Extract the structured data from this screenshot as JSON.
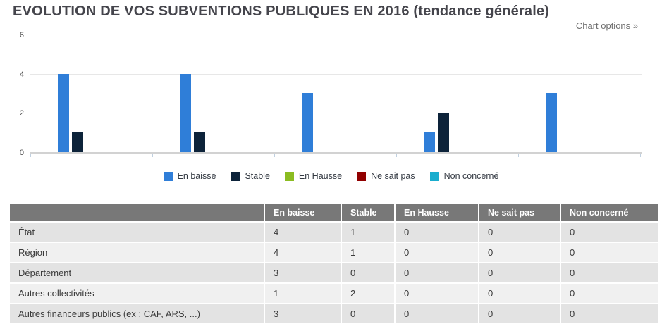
{
  "header": {
    "title": "EVOLUTION DE VOS SUBVENTIONS PUBLIQUES EN 2016 (tendance générale)",
    "chart_options_label": "Chart options »"
  },
  "chart_data": {
    "type": "bar",
    "categories": [
      "État",
      "Région",
      "Département",
      "Autres collectivités",
      "Autres financeurs publics (ex : CAF, ARS, ...)"
    ],
    "series": [
      {
        "name": "En baisse",
        "color": "#2f7ed8",
        "values": [
          4,
          4,
          3,
          1,
          3
        ]
      },
      {
        "name": "Stable",
        "color": "#0d233a",
        "values": [
          1,
          1,
          0,
          2,
          0
        ]
      },
      {
        "name": "En Hausse",
        "color": "#8bbc21",
        "values": [
          0,
          0,
          0,
          0,
          0
        ]
      },
      {
        "name": "Ne sait pas",
        "color": "#910000",
        "values": [
          0,
          0,
          0,
          0,
          0
        ]
      },
      {
        "name": "Non concerné",
        "color": "#1aadce",
        "values": [
          0,
          0,
          0,
          0,
          0
        ]
      }
    ],
    "title": "EVOLUTION DE VOS SUBVENTIONS PUBLIQUES EN 2016 (tendance générale)",
    "xlabel": "",
    "ylabel": "",
    "ylim": [
      0,
      6
    ],
    "yticks": [
      0,
      2,
      4,
      6
    ],
    "grid": true,
    "legend_position": "bottom",
    "x_axis_category_labels_visible": false
  },
  "table": {
    "columns": [
      "",
      "En baisse",
      "Stable",
      "En Hausse",
      "Ne sait pas",
      "Non concerné"
    ],
    "rows": [
      {
        "label": "État",
        "values": [
          4,
          1,
          0,
          0,
          0
        ]
      },
      {
        "label": "Région",
        "values": [
          4,
          1,
          0,
          0,
          0
        ]
      },
      {
        "label": "Département",
        "values": [
          3,
          0,
          0,
          0,
          0
        ]
      },
      {
        "label": "Autres collectivités",
        "values": [
          1,
          2,
          0,
          0,
          0
        ]
      },
      {
        "label": "Autres financeurs publics (ex : CAF, ARS, ...)",
        "values": [
          3,
          0,
          0,
          0,
          0
        ]
      }
    ]
  }
}
